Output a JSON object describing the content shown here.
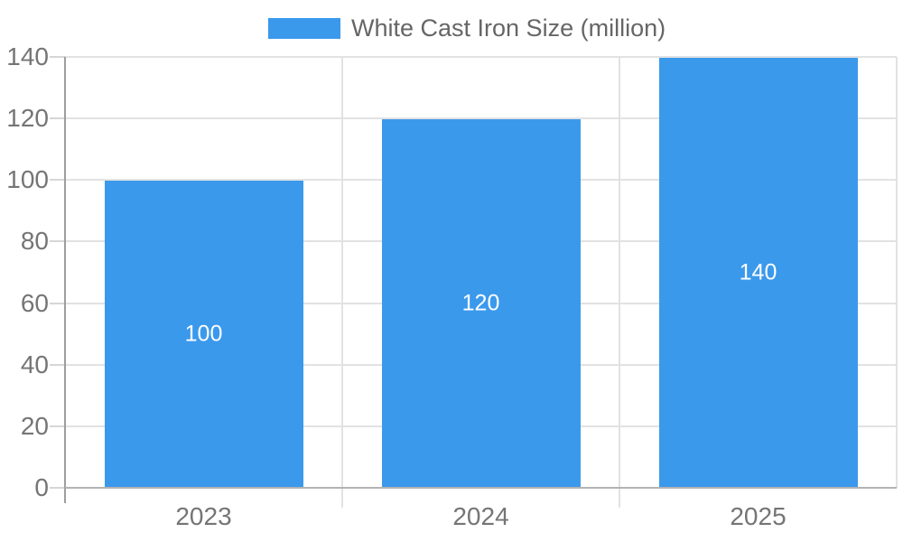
{
  "chart_data": {
    "type": "bar",
    "title": "",
    "xlabel": "",
    "ylabel": "",
    "categories": [
      "2023",
      "2024",
      "2025"
    ],
    "series": [
      {
        "name": "White Cast Iron Size (million)",
        "values": [
          100,
          120,
          140
        ]
      }
    ],
    "data_labels": [
      "100",
      "120",
      "140"
    ],
    "y_ticks": [
      "0",
      "20",
      "40",
      "60",
      "80",
      "100",
      "120",
      "140"
    ],
    "ylim": [
      0,
      140
    ],
    "grid": true,
    "legend": {
      "position": "top",
      "label": "White Cast Iron Size (million)"
    },
    "colors": {
      "bar": "#3b99ec",
      "y_axis_line": "#9e9e9e",
      "x_axis_line": "#b3b3b3",
      "gridline": "#e2e2e2",
      "tick_stub": "#d6d6d6",
      "tick_text": "#757575",
      "legend_text": "#666666",
      "data_label": "#ffffff",
      "background": "#ffffff"
    }
  }
}
